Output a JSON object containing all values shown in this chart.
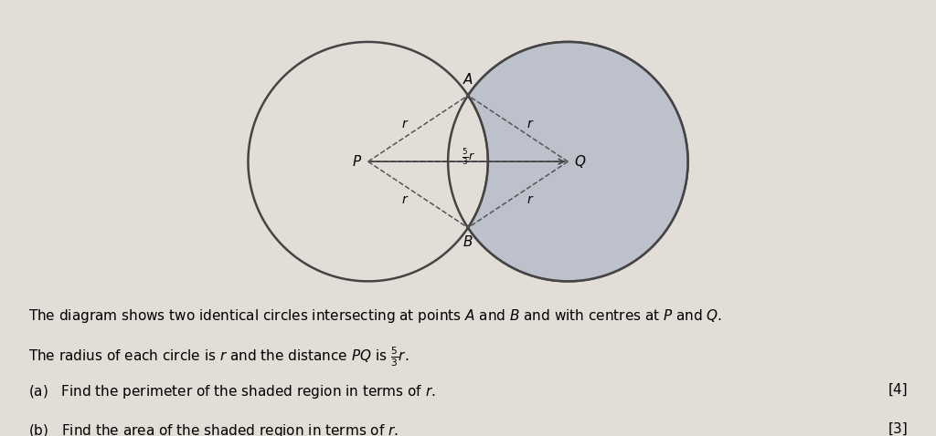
{
  "paper_color": "#e2ddd6",
  "circle_color": "#444444",
  "circle_linewidth": 1.8,
  "shade_color": "#b0b8c8",
  "shade_alpha": 0.75,
  "dashed_color": "#555555",
  "dashed_lw": 1.1,
  "label_fontsize": 11,
  "text_fontsize": 11,
  "title_line1": "The diagram shows two identical circles intersecting at points $A$ and $B$ and with centres at $P$ and $Q$.",
  "title_line2": "The radius of each circle is $r$ and the distance $PQ$ is $\\frac{5}{3}r$.",
  "qa_text": "(a)   Find the perimeter of the shaded region in terms of $r$.",
  "qb_text": "(b)   Find the area of the shaded region in terms of $r$.",
  "qa_marks": "[4]",
  "qb_marks": "[3]"
}
